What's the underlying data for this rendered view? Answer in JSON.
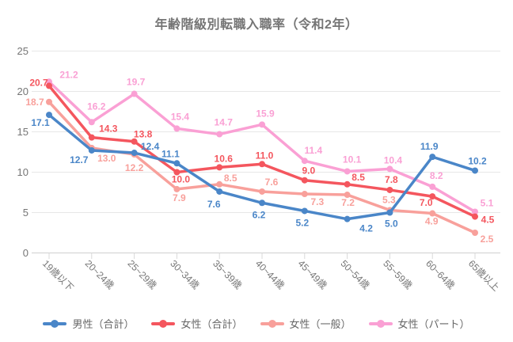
{
  "title": "年齢階級別転職入職率（令和2年）",
  "colors": {
    "background": "#ffffff",
    "title_text": "#757575",
    "axis_text": "#757575",
    "legend_text": "#666666",
    "gridline": "#e7e7e7",
    "axis_line": "#cfcfcf",
    "tick_mark": "#d9d9d9"
  },
  "chart_data": {
    "type": "line",
    "title": "年齢階級別転職入職率（令和2年）",
    "categories": [
      "19歳以下",
      "20~24歳",
      "25~29歳",
      "30~34歳",
      "35~39歳",
      "40~44歳",
      "45~49歳",
      "50~54歳",
      "55~59歳",
      "60~64歳",
      "65歳以上"
    ],
    "y_ticks": [
      0,
      5,
      10,
      15,
      20,
      25
    ],
    "ylim": [
      0,
      25
    ],
    "grid": true,
    "legend_position": "bottom",
    "x_label_rotation_deg": 45,
    "series": [
      {
        "name": "男性（合計）",
        "color": "#4a86c8",
        "values": [
          17.1,
          12.7,
          12.4,
          11.1,
          7.6,
          6.2,
          5.2,
          4.2,
          5.0,
          11.9,
          10.2
        ],
        "label_offsets": [
          [
            -11,
            10
          ],
          [
            -16,
            12
          ],
          [
            20,
            -8
          ],
          [
            -8,
            -12
          ],
          [
            -7,
            16
          ],
          [
            -4,
            15
          ],
          [
            -3,
            15
          ],
          [
            24,
            12
          ],
          [
            2,
            14
          ],
          [
            -4,
            -13
          ],
          [
            3,
            -12
          ]
        ]
      },
      {
        "name": "女性（合計）",
        "color": "#f4565e",
        "values": [
          20.7,
          14.3,
          13.8,
          10.0,
          10.6,
          11.0,
          9.0,
          8.5,
          7.8,
          7.0,
          4.5
        ],
        "label_offsets": [
          [
            -13,
            -4
          ],
          [
            21,
            -11
          ],
          [
            11,
            -9
          ],
          [
            5,
            9
          ],
          [
            5,
            -11
          ],
          [
            3,
            -11
          ],
          [
            5,
            -12
          ],
          [
            14,
            -9
          ],
          [
            2,
            -13
          ],
          [
            -8,
            8
          ],
          [
            16,
            4
          ]
        ]
      },
      {
        "name": "女性（一般）",
        "color": "#f8a09b",
        "values": [
          18.7,
          13.0,
          12.2,
          7.9,
          8.5,
          7.6,
          7.3,
          7.2,
          5.3,
          4.9,
          2.5
        ],
        "label_offsets": [
          [
            -18,
            0
          ],
          [
            19,
            13
          ],
          [
            0,
            17
          ],
          [
            3,
            11
          ],
          [
            14,
            -8
          ],
          [
            12,
            -12
          ],
          [
            16,
            10
          ],
          [
            1,
            10
          ],
          [
            -1,
            -13
          ],
          [
            -1,
            10
          ],
          [
            15,
            8
          ]
        ]
      },
      {
        "name": "女性（パート）",
        "color": "#faa0d4",
        "values": [
          21.2,
          16.2,
          19.7,
          15.4,
          14.7,
          15.9,
          11.4,
          10.1,
          10.4,
          8.2,
          5.1
        ],
        "label_offsets": [
          [
            25,
            -9
          ],
          [
            6,
            -20
          ],
          [
            2,
            -15
          ],
          [
            4,
            -15
          ],
          [
            5,
            -15
          ],
          [
            4,
            -14
          ],
          [
            11,
            -13
          ],
          [
            6,
            -15
          ],
          [
            4,
            -11
          ],
          [
            5,
            -14
          ],
          [
            15,
            -11
          ]
        ]
      }
    ]
  }
}
